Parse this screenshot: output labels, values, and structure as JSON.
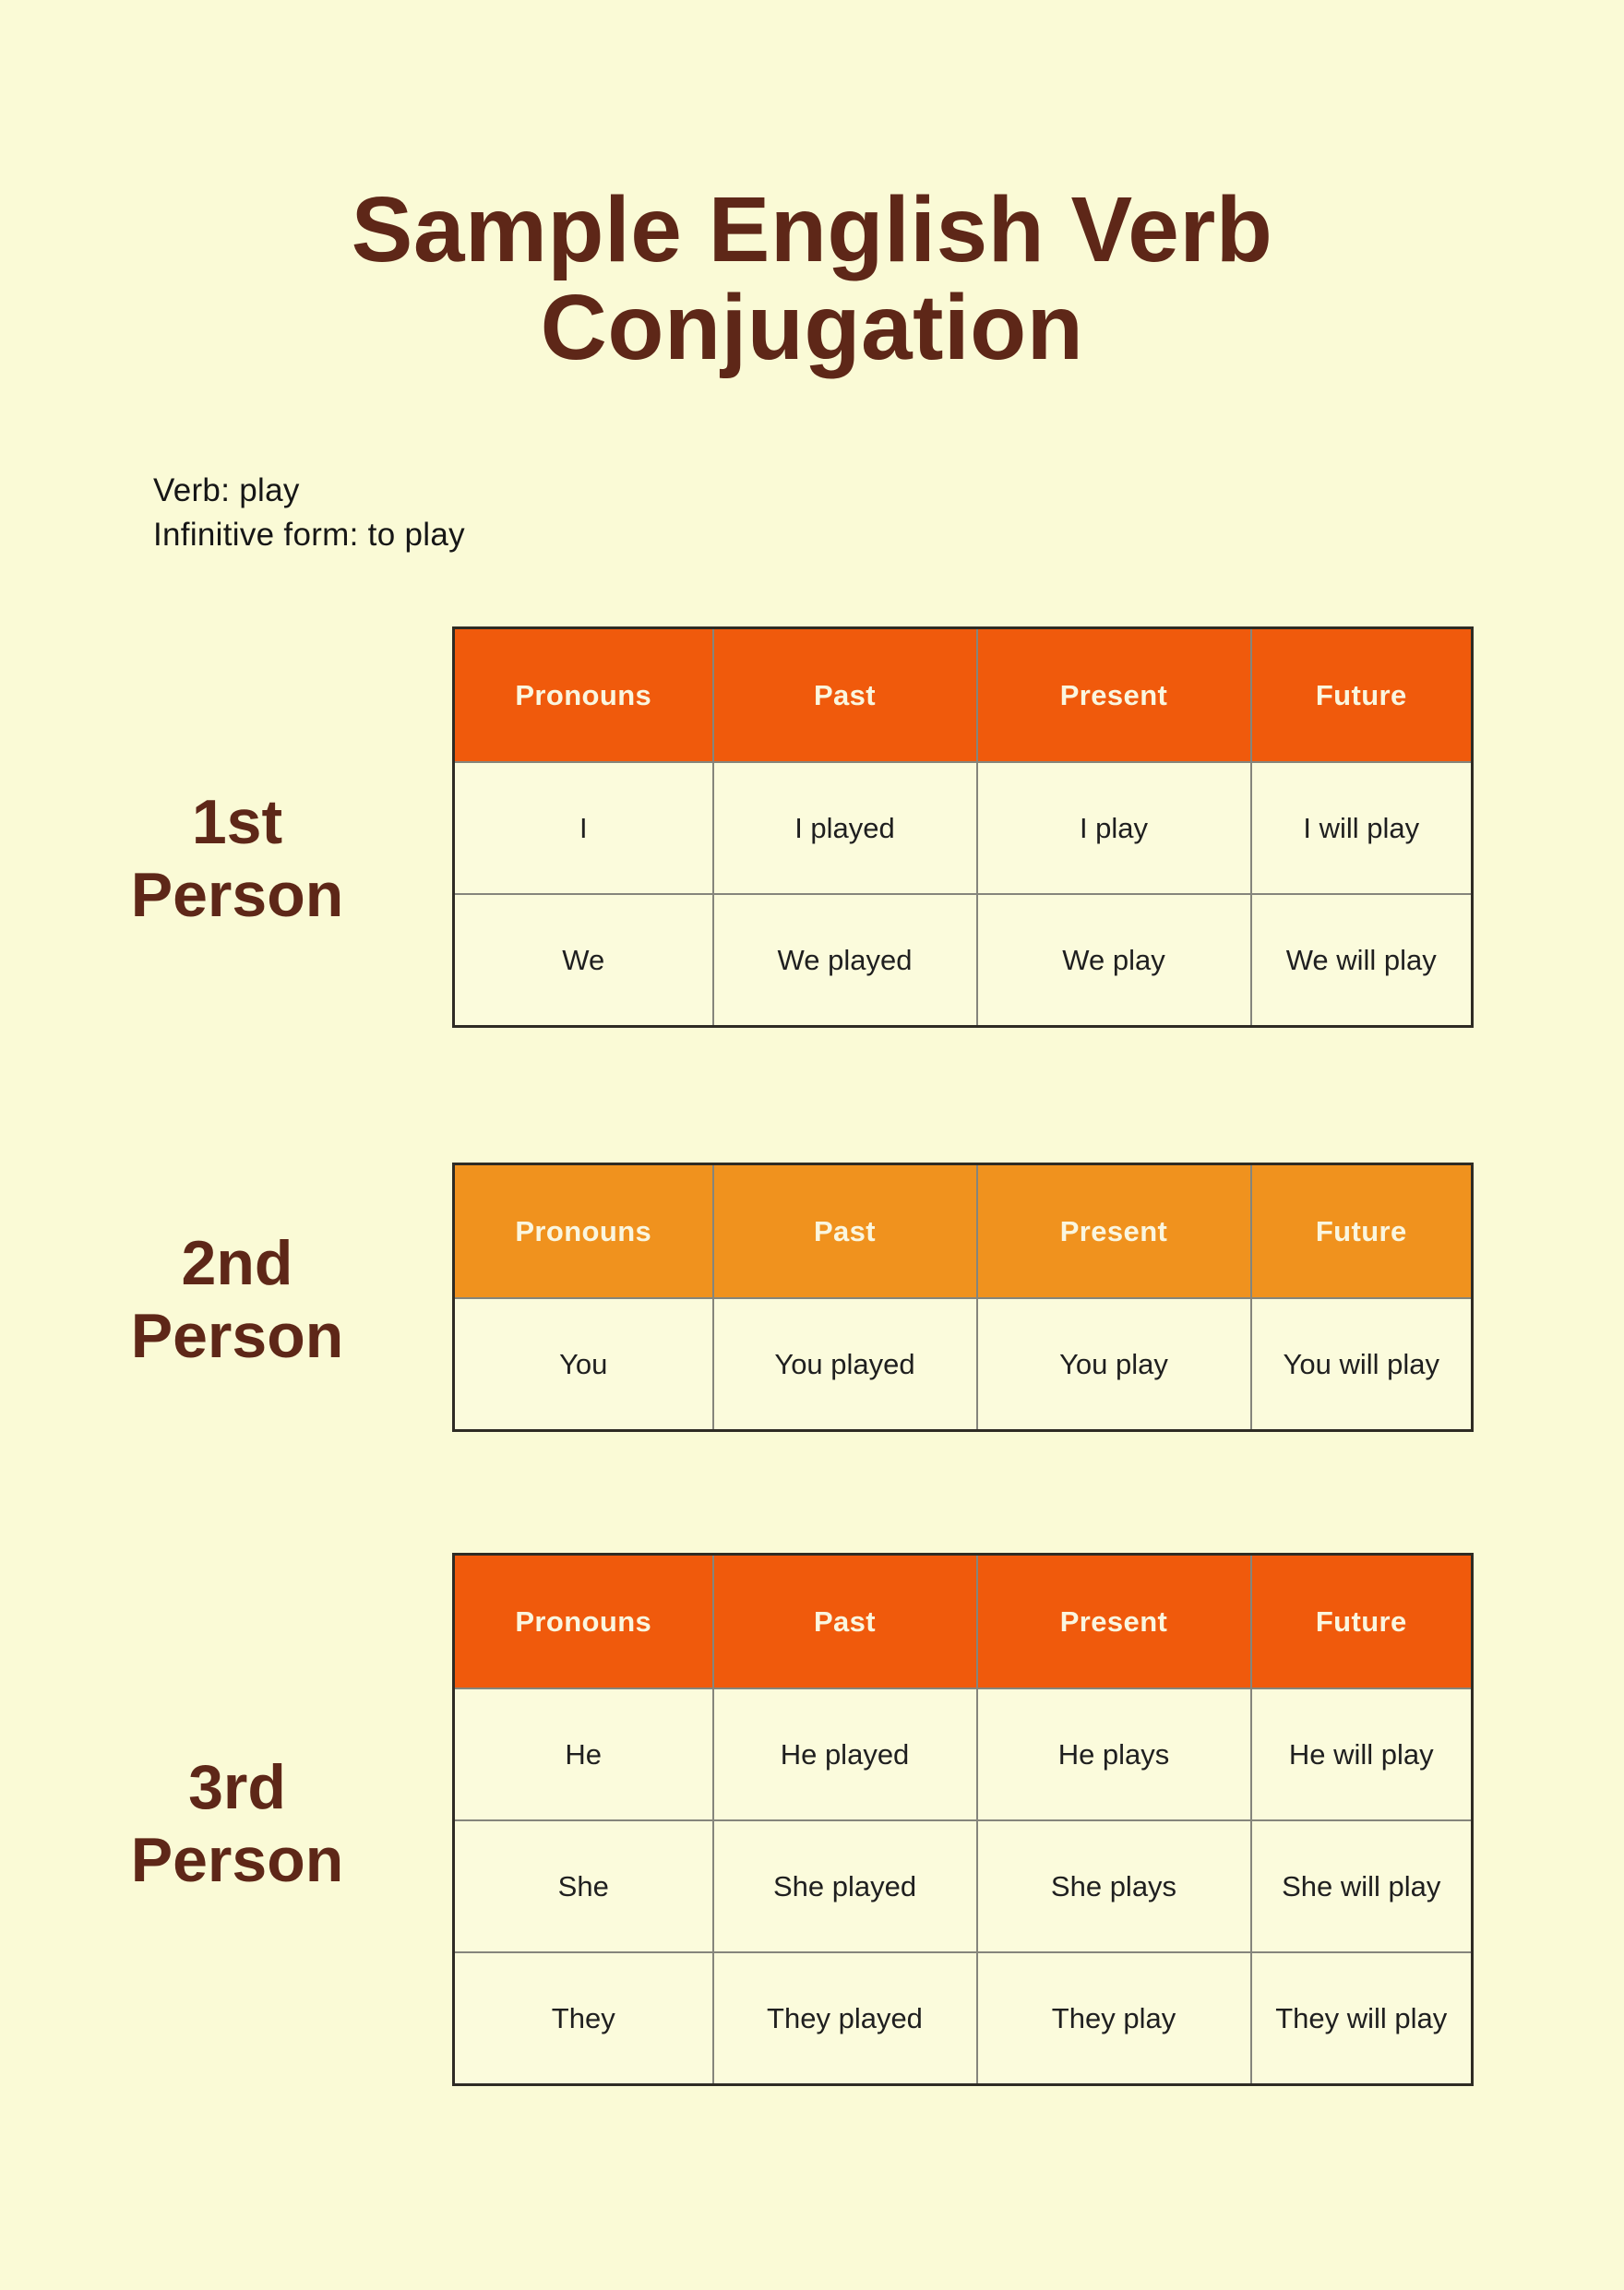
{
  "page": {
    "title_line1": "Sample English Verb",
    "title_line2": "Conjugation",
    "verb_line1": "Verb: play",
    "verb_line2": "Infinitive form: to play"
  },
  "colors": {
    "background": "#FAFAD6",
    "title_text": "#5E2718",
    "person_label_text": "#5E2718",
    "header_red_orange": "#F05A0C",
    "header_amber_orange": "#F0921E",
    "header_text": "#FAF6DF",
    "cell_text": "#1F1F1F",
    "cell_background": "#FBFBDC",
    "outer_border": "#2E2B24",
    "inner_border": "#85857C"
  },
  "tables": [
    {
      "id": "first-person",
      "label_line1": "1st",
      "label_line2": "Person",
      "header_color": "#F05A0C",
      "columns": [
        "Pronouns",
        "Past",
        "Present",
        "Future"
      ],
      "rows": [
        [
          "I",
          "I played",
          "I play",
          "I will play"
        ],
        [
          "We",
          "We played",
          "We play",
          "We will play"
        ]
      ]
    },
    {
      "id": "second-person",
      "label_line1": "2nd",
      "label_line2": "Person",
      "header_color": "#F0921E",
      "columns": [
        "Pronouns",
        "Past",
        "Present",
        "Future"
      ],
      "rows": [
        [
          "You",
          "You played",
          "You play",
          "You will play"
        ]
      ]
    },
    {
      "id": "third-person",
      "label_line1": "3rd",
      "label_line2": "Person",
      "header_color": "#F05A0C",
      "columns": [
        "Pronouns",
        "Past",
        "Present",
        "Future"
      ],
      "rows": [
        [
          "He",
          "He played",
          "He plays",
          "He will play"
        ],
        [
          "She",
          "She played",
          "She plays",
          "She will play"
        ],
        [
          "They",
          "They played",
          "They play",
          "They will play"
        ]
      ]
    }
  ]
}
